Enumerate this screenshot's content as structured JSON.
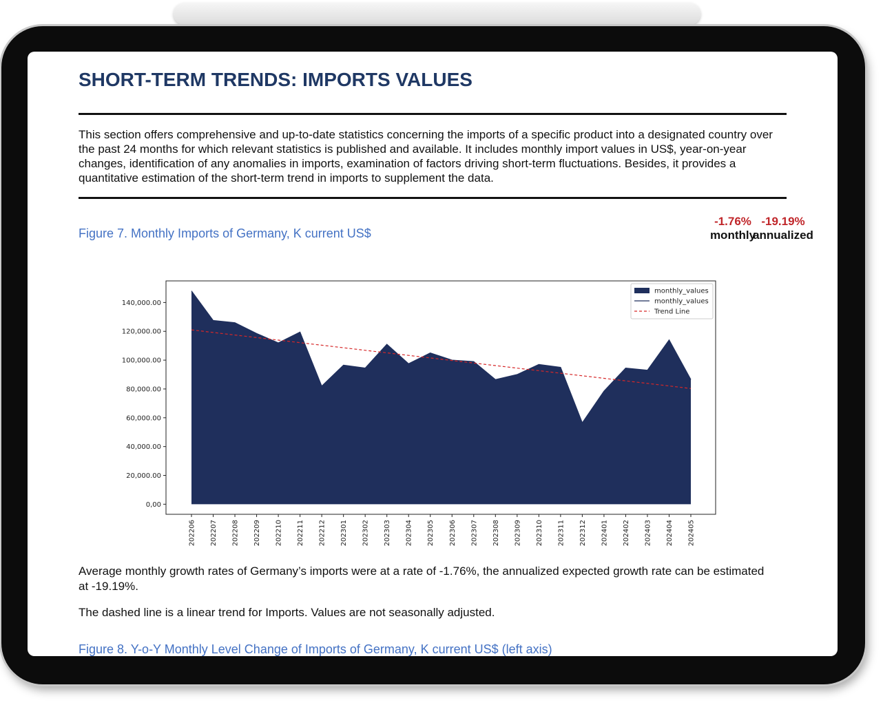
{
  "header": {
    "title": "SHORT-TERM TRENDS: IMPORTS VALUES"
  },
  "intro": "This section offers comprehensive and up-to-date statistics concerning the imports of a specific product into a designated country over the past 24 months for which relevant statistics is published and available. It includes monthly import values in US$, year-on-year changes, identification of any anomalies in imports, examination of factors driving short-term fluctuations. Besides, it provides a quantitative estimation of the short-term trend in imports to supplement the data.",
  "figure7": {
    "caption": "Figure 7. Monthly Imports of Germany, K current US$",
    "stats": [
      {
        "value": "-1.76%",
        "label": "monthly"
      },
      {
        "value": "-19.19%",
        "label": "annualized"
      }
    ]
  },
  "chart_data": {
    "type": "area",
    "categories": [
      "202206",
      "202207",
      "202208",
      "202209",
      "202210",
      "202211",
      "202212",
      "202301",
      "202302",
      "202303",
      "202304",
      "202305",
      "202306",
      "202307",
      "202308",
      "202309",
      "202310",
      "202311",
      "202312",
      "202401",
      "202402",
      "202403",
      "202404",
      "202405"
    ],
    "series": [
      {
        "name": "monthly_values",
        "style": "area",
        "color": "#1f2f5c",
        "values": [
          148000,
          127500,
          126000,
          118500,
          112000,
          119500,
          82000,
          96500,
          94500,
          111000,
          97500,
          105000,
          100000,
          99000,
          86500,
          90000,
          97000,
          95000,
          56500,
          78500,
          94500,
          93000,
          114000,
          86500
        ]
      },
      {
        "name": "monthly_values",
        "style": "line",
        "color": "#1f2f5c",
        "values": [
          148000,
          127500,
          126000,
          118500,
          112000,
          119500,
          82000,
          96500,
          94500,
          111000,
          97500,
          105000,
          100000,
          99000,
          86500,
          90000,
          97000,
          95000,
          56500,
          78500,
          94500,
          93000,
          114000,
          86500
        ]
      },
      {
        "name": "Trend Line",
        "style": "dashed",
        "color": "#d62728",
        "values": [
          121000,
          119230,
          117460,
          115690,
          113920,
          112150,
          110380,
          108610,
          106840,
          105070,
          103300,
          101530,
          99760,
          97990,
          96220,
          94450,
          92680,
          90910,
          89140,
          87370,
          85600,
          83830,
          82060,
          80290
        ]
      }
    ],
    "ylim": [
      -7000,
      155000
    ],
    "yticks": [
      {
        "value": 0,
        "label": "0,00"
      },
      {
        "value": 20000,
        "label": "20,000.00"
      },
      {
        "value": 40000,
        "label": "40,000.00"
      },
      {
        "value": 60000,
        "label": "60,000.00"
      },
      {
        "value": 80000,
        "label": "80,000.00"
      },
      {
        "value": 100000,
        "label": "100,000.00"
      },
      {
        "value": 120000,
        "label": "120,000.00"
      },
      {
        "value": 140000,
        "label": "140,000.00"
      }
    ],
    "legend": "upper right",
    "grid": false
  },
  "summary": [
    "Average monthly growth rates of Germany’s imports were at a rate of -1.76%, the annualized expected growth rate can be estimated at -19.19%.",
    "The dashed line is a linear trend for Imports. Values are not seasonally adjusted."
  ],
  "figure8": {
    "caption": "Figure 8. Y-o-Y Monthly Level Change of Imports of Germany, K current US$ (left axis)"
  }
}
